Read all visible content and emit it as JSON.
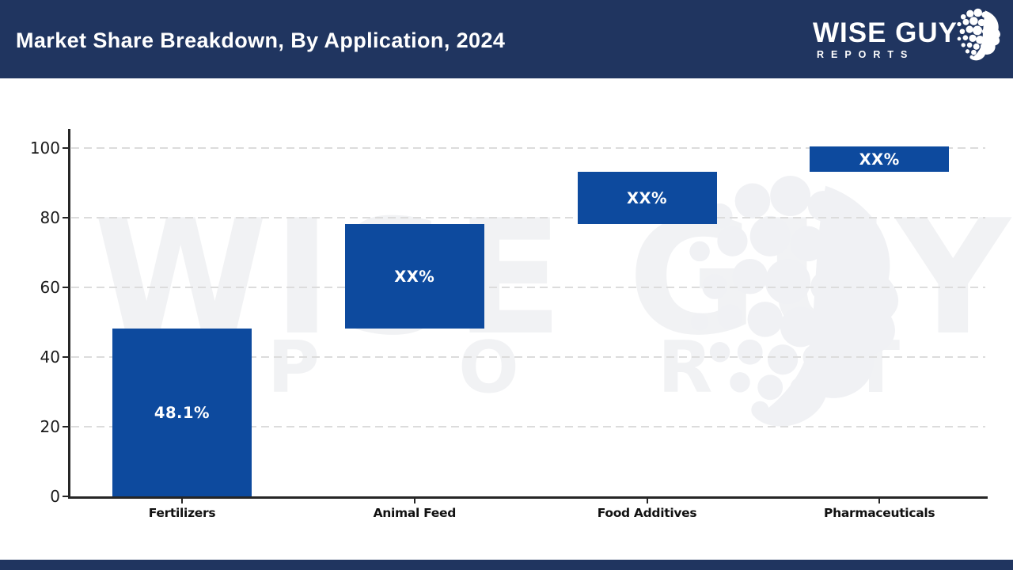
{
  "header": {
    "title": "Market Share Breakdown, By Application, 2024",
    "bg_color": "#203560",
    "logo": {
      "name": "WISE GUY",
      "sub": "REPORTS"
    }
  },
  "watermark": {
    "line1": "WISE GUY",
    "line2": "P O R T S"
  },
  "chart_data": {
    "type": "bar",
    "subtype": "waterfall",
    "title": "Market Share Breakdown, By Application, 2024",
    "categories": [
      "Fertilizers",
      "Animal Feed",
      "Food Additives",
      "Pharmaceuticals"
    ],
    "series": [
      {
        "name": "Market share (%)",
        "segments": [
          {
            "category": "Fertilizers",
            "start": 0,
            "end": 48.1,
            "label": "48.1%"
          },
          {
            "category": "Animal Feed",
            "start": 48.1,
            "end": 78.1,
            "label": "XX%"
          },
          {
            "category": "Food Additives",
            "start": 78.1,
            "end": 93.2,
            "label": "XX%"
          },
          {
            "category": "Pharmaceuticals",
            "start": 93.2,
            "end": 100.4,
            "label": "XX%"
          }
        ]
      }
    ],
    "xlabel": "",
    "ylabel": "",
    "yticks": [
      0,
      20,
      40,
      60,
      80,
      100
    ],
    "ylim": [
      0,
      105
    ],
    "bar_color": "#0d4a9e",
    "grid": "horizontal dashed",
    "legend": "none"
  }
}
